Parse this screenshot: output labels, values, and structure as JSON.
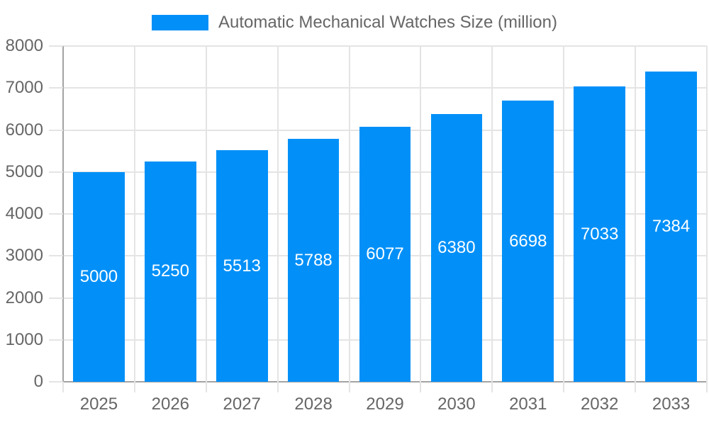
{
  "chart_data": {
    "type": "bar",
    "title": "Automatic Mechanical Watches Size (million)",
    "legend": {
      "label": "Automatic Mechanical Watches Size (million)",
      "position": "top-center"
    },
    "categories": [
      "2025",
      "2026",
      "2027",
      "2028",
      "2029",
      "2030",
      "2031",
      "2032",
      "2033"
    ],
    "values": [
      5000,
      5250,
      5513,
      5788,
      6077,
      6380,
      6698,
      7033,
      7384
    ],
    "value_labels": [
      "5000",
      "5250",
      "5513",
      "5788",
      "6077",
      "6380",
      "6698",
      "7033",
      "7384"
    ],
    "value_label_position": "inside-center",
    "xlabel": "",
    "ylabel": "",
    "ylim": [
      0,
      8000
    ],
    "y_ticks": [
      0,
      1000,
      2000,
      3000,
      4000,
      5000,
      6000,
      7000,
      8000
    ],
    "grid": true,
    "legend_swatch_color": "#0290f8",
    "bar_color": "#0290f8",
    "bar_label_color": "#ffffff",
    "gridline_color": "#e4e4e4",
    "axis_line_color": "#a3a3a3",
    "tick_text_color": "#666666"
  }
}
